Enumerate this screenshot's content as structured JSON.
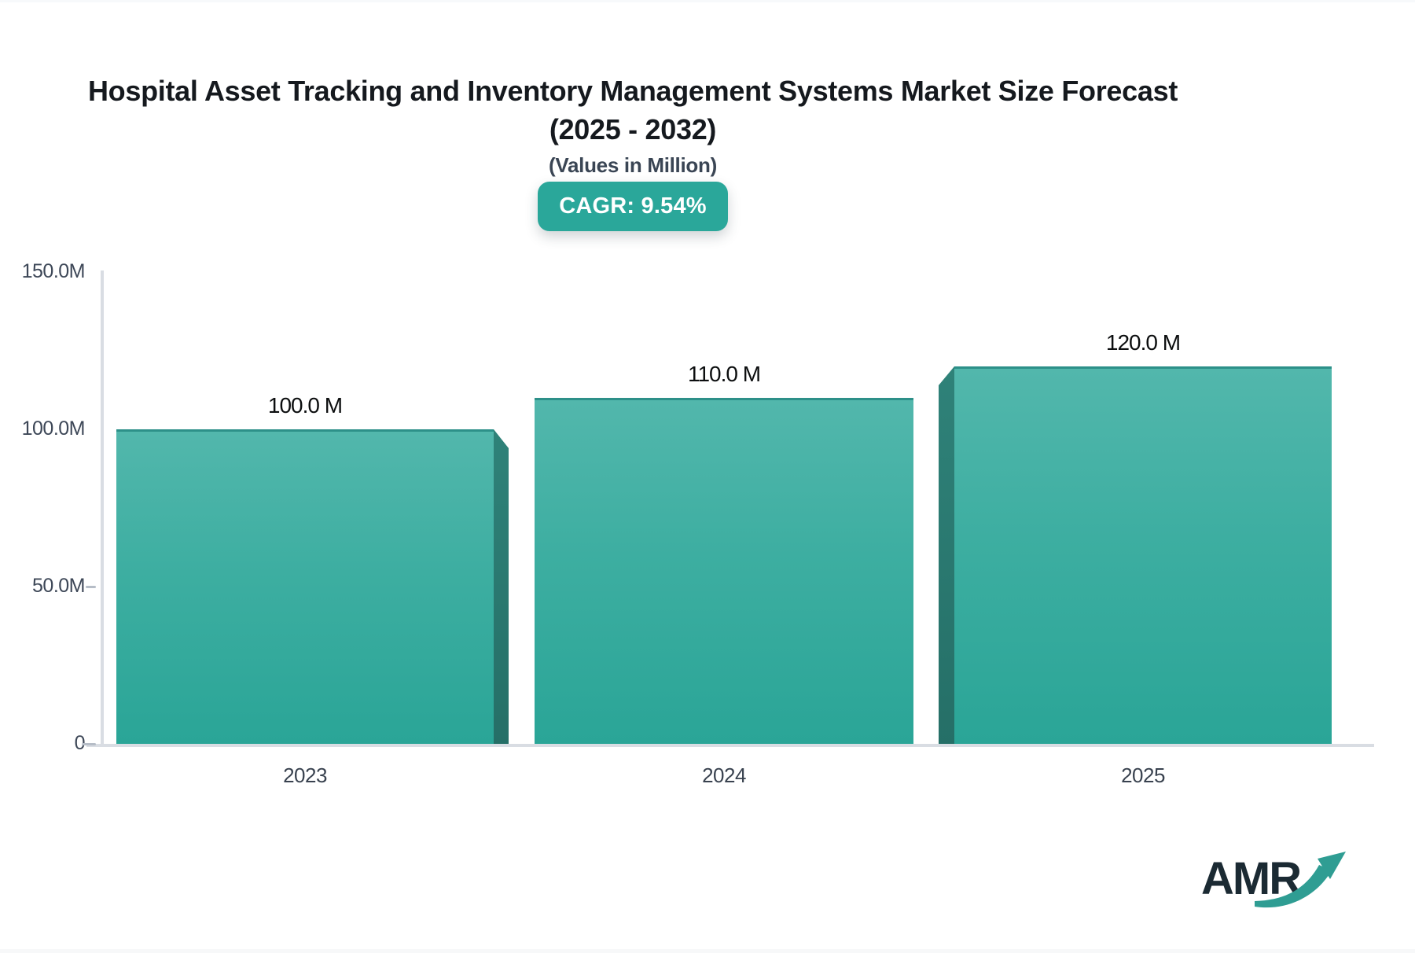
{
  "header": {
    "title_line1": "Hospital Asset Tracking and Inventory Management Systems Market Size Forecast",
    "title_line2": "(2025 - 2032)",
    "subtitle": "(Values in Million)",
    "cagr_label": "CAGR: 9.54%"
  },
  "chart_data": {
    "type": "bar",
    "title": "Hospital Asset Tracking and Inventory Management Systems Market Size Forecast (2025 - 2032)",
    "subtitle": "(Values in Million)",
    "cagr": "9.54%",
    "categories": [
      "2023",
      "2024",
      "2025"
    ],
    "values": [
      100.0,
      110.0,
      120.0
    ],
    "value_labels": [
      "100.0 M",
      "110.0 M",
      "120.0 M"
    ],
    "unit": "Million",
    "xlabel": "",
    "ylabel": "",
    "ylim": [
      0,
      150
    ],
    "yticks": [
      {
        "value": 150,
        "label": "150.0M",
        "dash": false
      },
      {
        "value": 100,
        "label": "100.0M",
        "dash": false
      },
      {
        "value": 50,
        "label": "50.0M",
        "dash": true
      },
      {
        "value": 0,
        "label": "0",
        "dash": true
      }
    ],
    "grid": false,
    "legend_position": "none",
    "bar_style": "3d-extruded"
  },
  "colors": {
    "bar_gradient_top": "#52b7ac",
    "bar_gradient_bottom": "#2aa597",
    "bar_top_edge": "#2d9089",
    "bar_side_shadow": "#256f67",
    "badge_background": "#2aa79a",
    "axis_line": "#d9dde3",
    "axis_label": "#3d4757",
    "title_text": "#15191e",
    "logo_navy": "#1b2a33",
    "logo_teal": "#2f9d93"
  },
  "logo": {
    "text": "AMR"
  }
}
